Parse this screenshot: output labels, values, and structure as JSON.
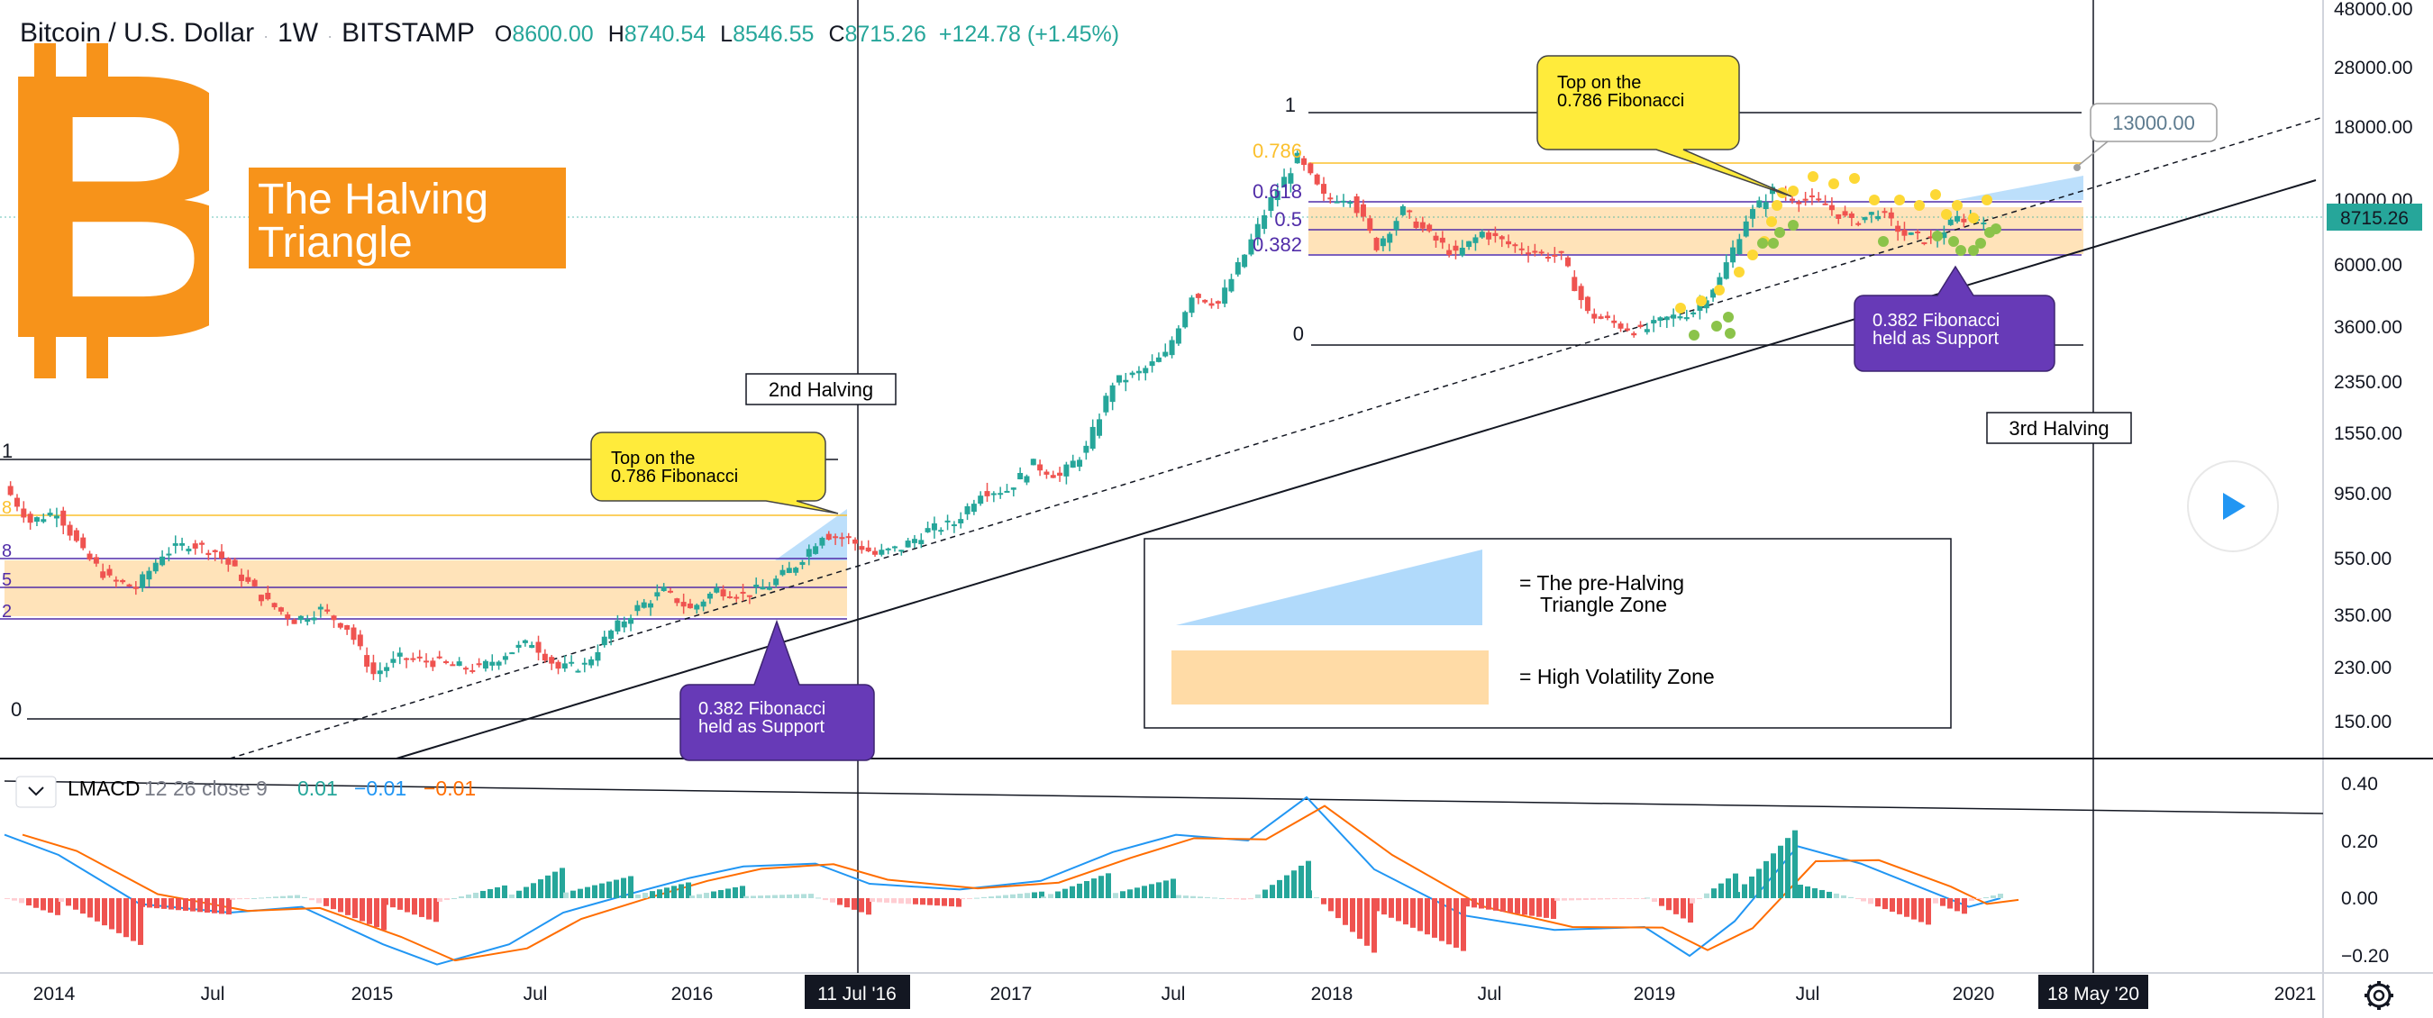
{
  "header": {
    "symbol": "Bitcoin / U.S. Dollar",
    "interval": "1W",
    "exchange": "BITSTAMP",
    "open_label": "O",
    "open": "8600.00",
    "high_label": "H",
    "high": "8740.54",
    "low_label": "L",
    "low": "8546.55",
    "close_label": "C",
    "close": "8715.26",
    "change": "+124.78 (+1.45%)"
  },
  "logo": {
    "glyph": "B",
    "title_line1": "The Halving",
    "title_line2": "Triangle"
  },
  "colors": {
    "up": "#26a69a",
    "down": "#ef5350",
    "accent": "#f7931a",
    "callout_yellow": "#ffeb3b",
    "callout_purple": "#673ab7",
    "triangle_zone": "#90caf9",
    "volatility_zone": "#ffcc80"
  },
  "price_scale": {
    "labels": [
      "48000.00",
      "28000.00",
      "18000.00",
      "10000.00",
      "6000.00",
      "3600.00",
      "2350.00",
      "1550.00",
      "950.00",
      "550.00",
      "350.00",
      "230.00",
      "150.00"
    ],
    "current_price": "8715.26",
    "projection_label": "13000.00"
  },
  "time_axis": {
    "labels": [
      "2014",
      "Jul",
      "2015",
      "Jul",
      "2016",
      "Jul",
      "2017",
      "Jul",
      "2018",
      "Jul",
      "2019",
      "Jul",
      "2020",
      "2021"
    ],
    "highlight_left": "11 Jul '16",
    "highlight_right": "18 May '20"
  },
  "annotations": {
    "halving2": "2nd Halving",
    "halving3": "3rd Halving",
    "top_left_l1": "Top on the",
    "top_left_l2": "0.786 Fibonacci",
    "top_right_l1": "Top on the",
    "top_right_l2": "0.786 Fibonacci",
    "support_left_l1": "0.382 Fibonacci",
    "support_left_l2": "held as Support",
    "support_right_l1": "0.382 Fibonacci",
    "support_right_l2": "held as Support",
    "legend_triangle_l1": "= The pre-Halving",
    "legend_triangle_l2": "Triangle Zone",
    "legend_volatility": "= High Volatility Zone"
  },
  "fib_right": {
    "f1": "1",
    "f786": "0.786",
    "f618": "0.618",
    "f5": "0.5",
    "f382": "0.382",
    "f0": "0"
  },
  "fib_left": {
    "f1": "1",
    "f786": "8",
    "f618": "8",
    "f5": "5",
    "f382": "2",
    "f0": "0"
  },
  "indicator": {
    "name": "LMACD",
    "params": "12 26 close 9",
    "v1": "0.01",
    "v2": "−0.01",
    "v3": "−0.01",
    "scale": [
      "0.40",
      "0.20",
      "0.00",
      "−0.20"
    ]
  },
  "chart_data": {
    "type": "candlestick",
    "symbol": "Bitcoin / U.S. Dollar",
    "interval": "1W",
    "y_scale": "log",
    "ylim": [
      120,
      50000
    ],
    "series": [
      {
        "date": "2013-11",
        "close": 1000
      },
      {
        "date": "2013-12",
        "close": 750
      },
      {
        "date": "2014-01",
        "close": 820
      },
      {
        "date": "2014-02",
        "close": 580
      },
      {
        "date": "2014-03",
        "close": 470
      },
      {
        "date": "2014-04",
        "close": 440
      },
      {
        "date": "2014-05",
        "close": 580
      },
      {
        "date": "2014-06",
        "close": 630
      },
      {
        "date": "2014-07",
        "close": 590
      },
      {
        "date": "2014-08",
        "close": 480
      },
      {
        "date": "2014-09",
        "close": 390
      },
      {
        "date": "2014-10",
        "close": 340
      },
      {
        "date": "2014-11",
        "close": 370
      },
      {
        "date": "2014-12",
        "close": 320
      },
      {
        "date": "2015-01",
        "close": 220
      },
      {
        "date": "2015-02",
        "close": 250
      },
      {
        "date": "2015-03",
        "close": 245
      },
      {
        "date": "2015-04",
        "close": 235
      },
      {
        "date": "2015-05",
        "close": 230
      },
      {
        "date": "2015-06",
        "close": 260
      },
      {
        "date": "2015-07",
        "close": 285
      },
      {
        "date": "2015-08",
        "close": 230
      },
      {
        "date": "2015-09",
        "close": 236
      },
      {
        "date": "2015-10",
        "close": 310
      },
      {
        "date": "2015-11",
        "close": 375
      },
      {
        "date": "2015-12",
        "close": 430
      },
      {
        "date": "2016-01",
        "close": 370
      },
      {
        "date": "2016-02",
        "close": 435
      },
      {
        "date": "2016-03",
        "close": 415
      },
      {
        "date": "2016-04",
        "close": 450
      },
      {
        "date": "2016-05",
        "close": 530
      },
      {
        "date": "2016-06",
        "close": 680
      },
      {
        "date": "2016-07",
        "close": 650
      },
      {
        "date": "2016-08",
        "close": 575
      },
      {
        "date": "2016-09",
        "close": 610
      },
      {
        "date": "2016-10",
        "close": 700
      },
      {
        "date": "2016-11",
        "close": 740
      },
      {
        "date": "2016-12",
        "close": 960
      },
      {
        "date": "2017-01",
        "close": 970
      },
      {
        "date": "2017-02",
        "close": 1190
      },
      {
        "date": "2017-03",
        "close": 1080
      },
      {
        "date": "2017-04",
        "close": 1350
      },
      {
        "date": "2017-05",
        "close": 2300
      },
      {
        "date": "2017-06",
        "close": 2480
      },
      {
        "date": "2017-07",
        "close": 2870
      },
      {
        "date": "2017-08",
        "close": 4700
      },
      {
        "date": "2017-09",
        "close": 4340
      },
      {
        "date": "2017-10",
        "close": 6450
      },
      {
        "date": "2017-11",
        "close": 10000
      },
      {
        "date": "2017-12",
        "close": 14000
      },
      {
        "date": "2018-01",
        "close": 10200
      },
      {
        "date": "2018-02",
        "close": 10300
      },
      {
        "date": "2018-03",
        "close": 6900
      },
      {
        "date": "2018-04",
        "close": 9200
      },
      {
        "date": "2018-05",
        "close": 7500
      },
      {
        "date": "2018-06",
        "close": 6400
      },
      {
        "date": "2018-07",
        "close": 7700
      },
      {
        "date": "2018-08",
        "close": 7000
      },
      {
        "date": "2018-09",
        "close": 6600
      },
      {
        "date": "2018-10",
        "close": 6300
      },
      {
        "date": "2018-11",
        "close": 4000
      },
      {
        "date": "2018-12",
        "close": 3700
      },
      {
        "date": "2019-01",
        "close": 3450
      },
      {
        "date": "2019-02",
        "close": 3850
      },
      {
        "date": "2019-03",
        "close": 4100
      },
      {
        "date": "2019-04",
        "close": 5300
      },
      {
        "date": "2019-05",
        "close": 8600
      },
      {
        "date": "2019-06",
        "close": 10800
      },
      {
        "date": "2019-07",
        "close": 10100
      },
      {
        "date": "2019-08",
        "close": 9600
      },
      {
        "date": "2019-09",
        "close": 8300
      },
      {
        "date": "2019-10",
        "close": 9150
      },
      {
        "date": "2019-11",
        "close": 7550
      },
      {
        "date": "2019-12",
        "close": 7200
      },
      {
        "date": "2020-01",
        "close": 8600
      },
      {
        "date": "2020-02",
        "close": 8715
      }
    ],
    "fib_levels_right": [
      {
        "level": "1",
        "price": 19700
      },
      {
        "level": "0.786",
        "price": 13700
      },
      {
        "level": "0.618",
        "price": 10200
      },
      {
        "level": "0.5",
        "price": 8500
      },
      {
        "level": "0.382",
        "price": 7000
      },
      {
        "level": "0",
        "price": 3200
      }
    ],
    "fib_levels_left": [
      {
        "level": "1",
        "price": 1170
      },
      {
        "level": "0.786",
        "price": 780
      },
      {
        "level": "0.618",
        "price": 580
      },
      {
        "level": "0.5",
        "price": 480
      },
      {
        "level": "0.382",
        "price": 385
      },
      {
        "level": "0",
        "price": 165
      }
    ],
    "macd_scale": [
      0.4,
      0.2,
      0.0,
      -0.2
    ]
  }
}
